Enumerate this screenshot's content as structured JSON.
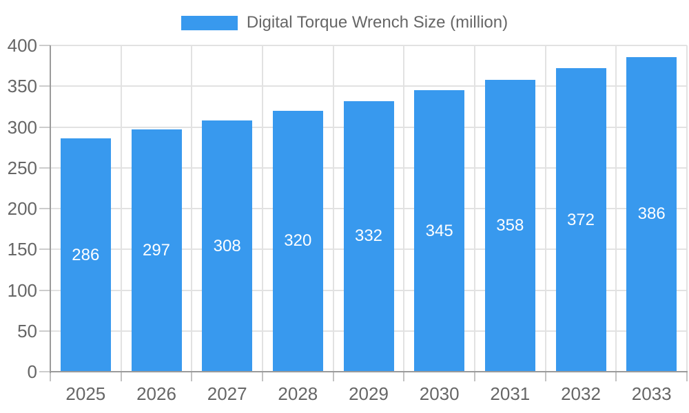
{
  "chart_data": {
    "type": "bar",
    "title": "",
    "legend": "Digital Torque Wrench Size (million)",
    "legend_position": "top",
    "categories": [
      "2025",
      "2026",
      "2027",
      "2028",
      "2029",
      "2030",
      "2031",
      "2032",
      "2033"
    ],
    "values": [
      286,
      297,
      308,
      320,
      332,
      345,
      358,
      372,
      386
    ],
    "xlabel": "",
    "ylabel": "",
    "ylim": [
      0,
      400
    ],
    "yticks": [
      0,
      50,
      100,
      150,
      200,
      250,
      300,
      350,
      400
    ],
    "grid": true,
    "colors": {
      "bar": "#3899ee",
      "bar_value_text": "#ffffff",
      "axis_line": "#9a9a9a",
      "gridline": "#e2e2e2",
      "tick_text": "#666666",
      "legend_text": "#666666"
    }
  }
}
